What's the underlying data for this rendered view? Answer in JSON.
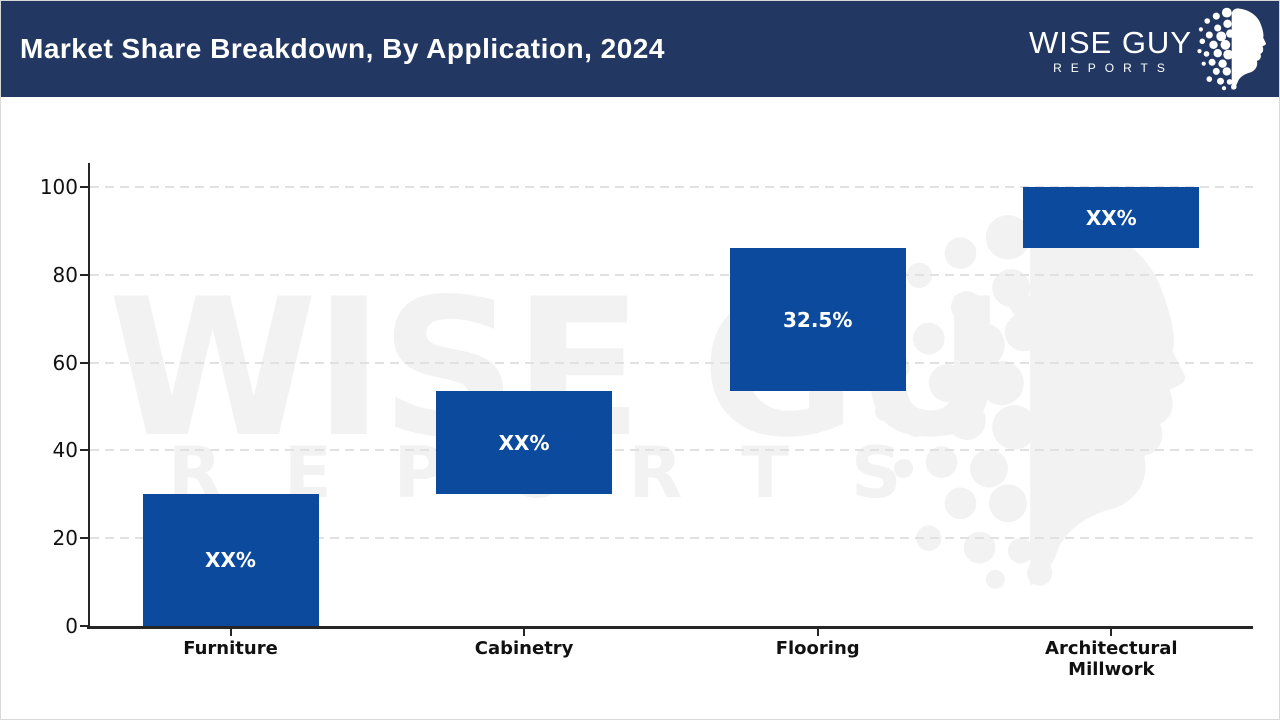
{
  "header": {
    "title": "Market Share Breakdown, By Application, 2024",
    "bg_color": "#223863",
    "logo": {
      "line1": "WISE GUY",
      "line2": "REPORTS"
    }
  },
  "watermark": {
    "line1": "WISE GUY",
    "line2": "REPORTS"
  },
  "chart_data": {
    "type": "bar",
    "subtype": "waterfall",
    "title": "Market Share Breakdown, By Application, 2024",
    "xlabel": "",
    "ylabel": "",
    "categories": [
      "Furniture",
      "Cabinetry",
      "Flooring",
      "Architectural Millwork"
    ],
    "bars": [
      {
        "category": "Furniture",
        "start": 0,
        "end": 30,
        "value": 30,
        "label": "XX%"
      },
      {
        "category": "Cabinetry",
        "start": 30,
        "end": 53.5,
        "value": 23.5,
        "label": "XX%"
      },
      {
        "category": "Flooring",
        "start": 53.5,
        "end": 86,
        "value": 32.5,
        "label": "32.5%"
      },
      {
        "category": "Architectural Millwork",
        "start": 86,
        "end": 100,
        "value": 14,
        "label": "XX%"
      }
    ],
    "yticks": [
      0,
      20,
      40,
      60,
      80,
      100
    ],
    "ylim": [
      0,
      105
    ],
    "grid": "horizontal-dashed",
    "legend": "none",
    "bar_color": "#0c4a9e",
    "bar_label_color": "#ffffff",
    "axis_color": "#262626"
  }
}
